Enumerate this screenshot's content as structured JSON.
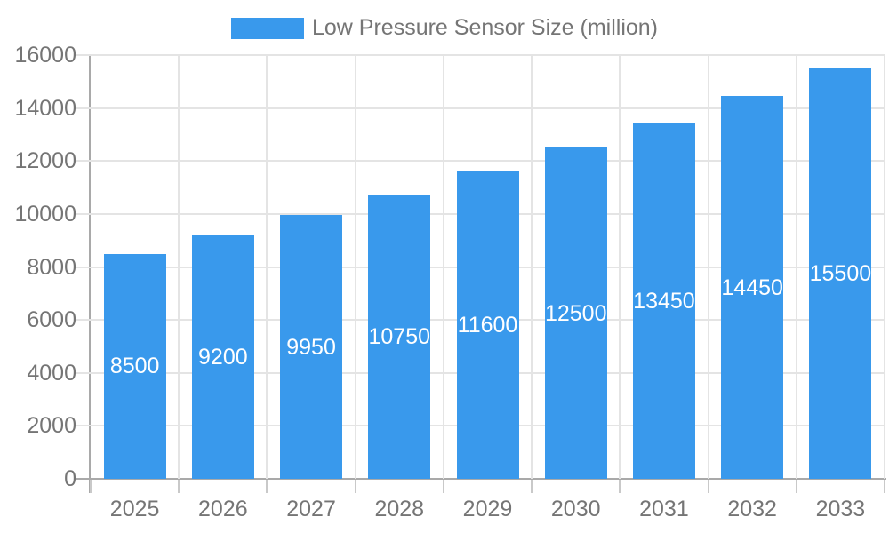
{
  "legend": {
    "label": "Low Pressure Sensor Size (million)"
  },
  "colors": {
    "bar": "#3999EC",
    "bar_label_text": "#FFFFFF",
    "axis_text": "#757575",
    "gridline": "#E4E4E4",
    "axis_line": "#A9A9A9",
    "tick": "#C9C9C9",
    "background": "#FFFFFF"
  },
  "chart_data": {
    "type": "bar",
    "title": "Low Pressure Sensor Size (million)",
    "series": [
      {
        "name": "Low Pressure Sensor Size (million)",
        "values": [
          8500,
          9200,
          9950,
          10750,
          11600,
          12500,
          13450,
          14450,
          15500
        ]
      }
    ],
    "categories": [
      "2025",
      "2026",
      "2027",
      "2028",
      "2029",
      "2030",
      "2031",
      "2032",
      "2033"
    ],
    "data_labels": [
      "8500",
      "9200",
      "9950",
      "10750",
      "11600",
      "12500",
      "13450",
      "14450",
      "15500"
    ],
    "xlabel": "",
    "ylabel": "",
    "ylim": [
      0,
      16000
    ],
    "yticks": [
      0,
      2000,
      4000,
      6000,
      8000,
      10000,
      12000,
      14000,
      16000
    ],
    "grid": true,
    "legend_position": "top-center",
    "bar_label_position": "inside-middle"
  }
}
